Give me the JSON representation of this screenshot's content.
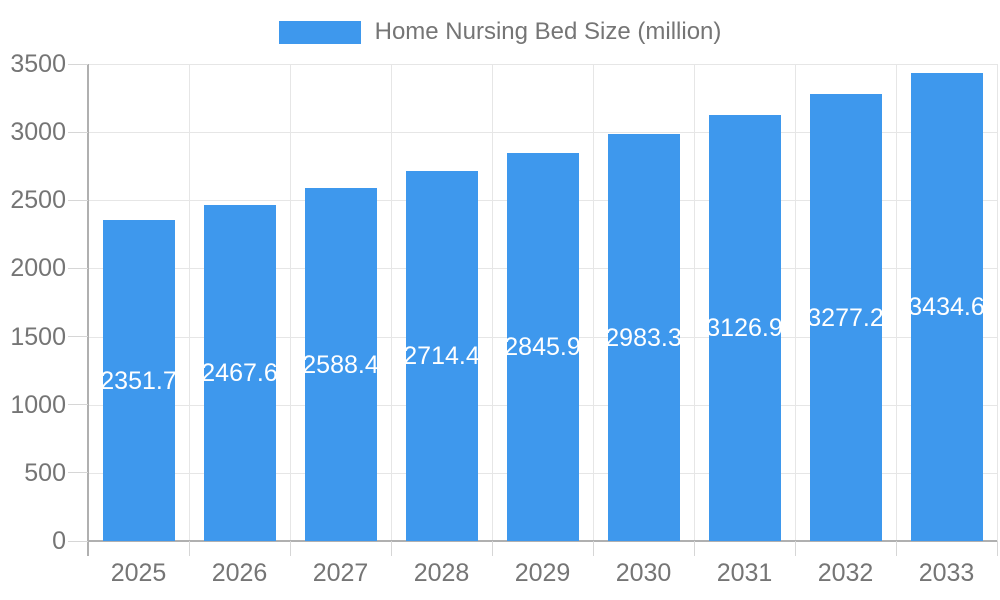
{
  "legend": {
    "label": "Home Nursing Bed Size (million)",
    "position": "top"
  },
  "chart_data": {
    "type": "bar",
    "title": "Home Nursing Bed Size (million)",
    "series_name": "Home Nursing Bed Size (million)",
    "categories": [
      "2025",
      "2026",
      "2027",
      "2028",
      "2029",
      "2030",
      "2031",
      "2032",
      "2033"
    ],
    "values": [
      2351.7,
      2467.6,
      2588.4,
      2714.4,
      2845.9,
      2983.3,
      3126.9,
      3277.2,
      3434.6
    ],
    "value_labels": [
      "2351.7",
      "2467.6",
      "2588.4",
      "2714.4",
      "2845.9",
      "2983.3",
      "3126.9",
      "3277.2",
      "3434.6"
    ],
    "xlabel": "",
    "ylabel": "",
    "ylim": [
      0,
      3500
    ],
    "yticks": [
      0,
      500,
      1000,
      1500,
      2000,
      2500,
      3000,
      3500
    ],
    "ytick_labels": [
      "0",
      "500",
      "1000",
      "1500",
      "2000",
      "2500",
      "3000",
      "3500"
    ],
    "grid": true,
    "legend_position": "top"
  },
  "colors": {
    "bar": "#3e98ed",
    "text": "#757575",
    "axis_line": "#b0b0b0",
    "gridline": "#e6e6e6",
    "tick": "#d6d6d6",
    "bar_label": "#ffffff",
    "background": "#ffffff"
  }
}
